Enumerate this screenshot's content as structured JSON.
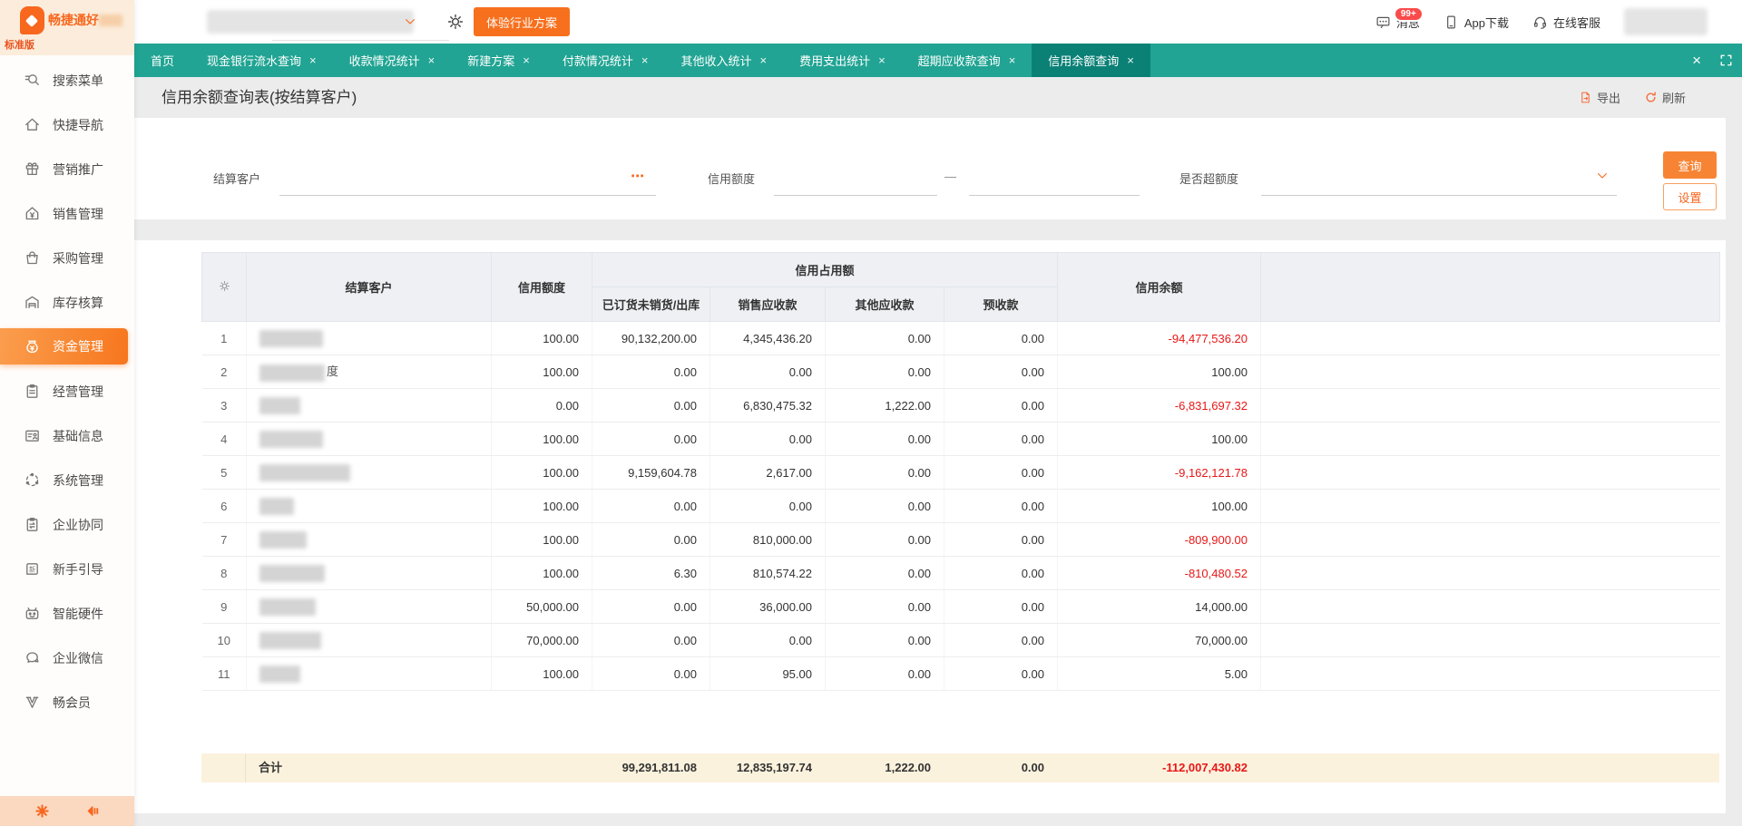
{
  "brand": {
    "name": "畅捷通好",
    "edition": "标准版"
  },
  "topbar": {
    "trial_button": "体验行业方案",
    "messages_label": "消息",
    "messages_badge": "99+",
    "app_download_label": "App下载",
    "support_label": "在线客服"
  },
  "tabs": {
    "items": [
      {
        "label": "首页",
        "closable": false,
        "active": false
      },
      {
        "label": "现金银行流水查询",
        "closable": true,
        "active": false
      },
      {
        "label": "收款情况统计",
        "closable": true,
        "active": false
      },
      {
        "label": "新建方案",
        "closable": true,
        "active": false
      },
      {
        "label": "付款情况统计",
        "closable": true,
        "active": false
      },
      {
        "label": "其他收入统计",
        "closable": true,
        "active": false
      },
      {
        "label": "费用支出统计",
        "closable": true,
        "active": false
      },
      {
        "label": "超期应收款查询",
        "closable": true,
        "active": false
      },
      {
        "label": "信用余额查询",
        "closable": true,
        "active": true
      }
    ]
  },
  "sidebar": {
    "active_index": 6,
    "items": [
      {
        "label": "搜索菜单",
        "icon": "search-icon"
      },
      {
        "label": "快捷导航",
        "icon": "home-icon"
      },
      {
        "label": "营销推广",
        "icon": "gift-icon"
      },
      {
        "label": "销售管理",
        "icon": "sale-icon"
      },
      {
        "label": "采购管理",
        "icon": "purchase-icon"
      },
      {
        "label": "库存核算",
        "icon": "inventory-icon"
      },
      {
        "label": "资金管理",
        "icon": "money-icon"
      },
      {
        "label": "经营管理",
        "icon": "business-icon"
      },
      {
        "label": "基础信息",
        "icon": "info-icon"
      },
      {
        "label": "系统管理",
        "icon": "system-icon"
      },
      {
        "label": "企业协同",
        "icon": "collab-icon"
      },
      {
        "label": "新手引导",
        "icon": "newbie-icon"
      },
      {
        "label": "智能硬件",
        "icon": "hardware-icon"
      },
      {
        "label": "企业微信",
        "icon": "wechat-icon"
      },
      {
        "label": "畅会员",
        "icon": "member-icon"
      }
    ]
  },
  "page": {
    "title": "信用余额查询表(按结算客户)",
    "export_label": "导出",
    "refresh_label": "刷新"
  },
  "filters": {
    "customer_label": "结算客户",
    "credit_limit_label": "信用额度",
    "range_separator": "—",
    "over_limit_label": "是否超额度",
    "query_button": "查询",
    "settings_button": "设置"
  },
  "table": {
    "group_header": "信用占用额",
    "columns": [
      "结算客户",
      "信用额度",
      "已订货未销货/出库",
      "销售应收款",
      "其他应收款",
      "预收款",
      "信用余额"
    ],
    "rows": [
      {
        "num": "1",
        "redact_w": 70,
        "suffix": "",
        "cells": [
          "100.00",
          "90,132,200.00",
          "4,345,436.20",
          "0.00",
          "0.00",
          "-94,477,536.20"
        ]
      },
      {
        "num": "2",
        "redact_w": 72,
        "suffix": "度",
        "cells": [
          "100.00",
          "0.00",
          "0.00",
          "0.00",
          "0.00",
          "100.00"
        ]
      },
      {
        "num": "3",
        "redact_w": 45,
        "suffix": "",
        "cells": [
          "0.00",
          "0.00",
          "6,830,475.32",
          "1,222.00",
          "0.00",
          "-6,831,697.32"
        ]
      },
      {
        "num": "4",
        "redact_w": 70,
        "suffix": "",
        "cells": [
          "100.00",
          "0.00",
          "0.00",
          "0.00",
          "0.00",
          "100.00"
        ]
      },
      {
        "num": "5",
        "redact_w": 100,
        "suffix": "",
        "cells": [
          "100.00",
          "9,159,604.78",
          "2,617.00",
          "0.00",
          "0.00",
          "-9,162,121.78"
        ]
      },
      {
        "num": "6",
        "redact_w": 38,
        "suffix": "",
        "cells": [
          "100.00",
          "0.00",
          "0.00",
          "0.00",
          "0.00",
          "100.00"
        ]
      },
      {
        "num": "7",
        "redact_w": 52,
        "suffix": "",
        "cells": [
          "100.00",
          "0.00",
          "810,000.00",
          "0.00",
          "0.00",
          "-809,900.00"
        ]
      },
      {
        "num": "8",
        "redact_w": 72,
        "suffix": "",
        "cells": [
          "100.00",
          "6.30",
          "810,574.22",
          "0.00",
          "0.00",
          "-810,480.52"
        ]
      },
      {
        "num": "9",
        "redact_w": 62,
        "suffix": "",
        "cells": [
          "50,000.00",
          "0.00",
          "36,000.00",
          "0.00",
          "0.00",
          "14,000.00"
        ]
      },
      {
        "num": "10",
        "redact_w": 68,
        "suffix": "",
        "cells": [
          "70,000.00",
          "0.00",
          "0.00",
          "0.00",
          "0.00",
          "70,000.00"
        ]
      },
      {
        "num": "11",
        "redact_w": 45,
        "suffix": "",
        "cells": [
          "100.00",
          "0.00",
          "95.00",
          "0.00",
          "0.00",
          "5.00"
        ]
      }
    ],
    "total": {
      "label": "合计",
      "values": [
        "",
        "99,291,811.08",
        "12,835,197.74",
        "1,222.00",
        "0.00",
        "-112,007,430.82"
      ]
    }
  },
  "colors": {
    "accent_orange": "#f7671e",
    "teal": "#21a493",
    "teal_active": "#0b8176",
    "negative_red": "#e81717",
    "total_row_bg": "#fbf2dd",
    "header_bg": "#eef0f4"
  }
}
